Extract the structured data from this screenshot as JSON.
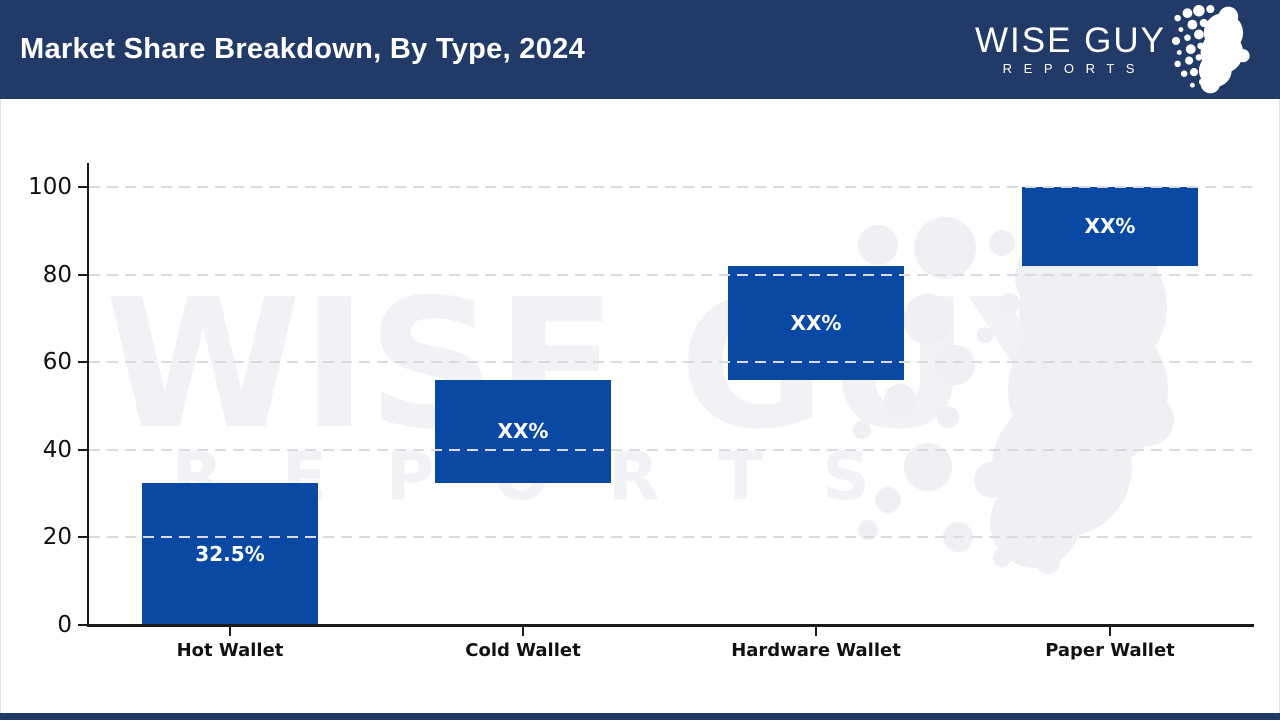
{
  "header": {
    "title": "Market Share Breakdown, By Type, 2024",
    "logo": {
      "line1": "WISE GUY",
      "line2": "R E P O R T S",
      "icon": "dotted-head-profile"
    }
  },
  "watermark": {
    "line1": "WISE GUY",
    "line2": "R E P O R T S",
    "icon": "dotted-head-profile"
  },
  "chart_data": {
    "type": "bar",
    "subtype": "waterfall",
    "title": "Market Share Breakdown, By Type, 2024",
    "categories": [
      "Hot Wallet",
      "Cold Wallet",
      "Hardware Wallet",
      "Paper Wallet"
    ],
    "segments": [
      {
        "category": "Hot Wallet",
        "start": 0,
        "end": 32.5,
        "value": 32.5,
        "label": "32.5%"
      },
      {
        "category": "Cold Wallet",
        "start": 32.5,
        "end": 56,
        "value": 23.5,
        "label": "XX%"
      },
      {
        "category": "Hardware Wallet",
        "start": 56,
        "end": 82,
        "value": 26,
        "label": "XX%"
      },
      {
        "category": "Paper Wallet",
        "start": 82,
        "end": 100,
        "value": 18,
        "label": "XX%"
      }
    ],
    "xlabel": "",
    "ylabel": "",
    "ylim": [
      0,
      105
    ],
    "yticks": [
      0,
      20,
      40,
      60,
      80,
      100
    ],
    "grid": "horizontal dashed gridlines drawn over bars",
    "legend_position": "none",
    "bar_color": "#0a49a3",
    "bar_label_color": "#ffffff"
  },
  "colors": {
    "header_bg": "#223a67",
    "footer_bg": "#223a67",
    "bar": "#0a49a3",
    "grid": "#d9dbde",
    "axis": "#1b1b1b",
    "watermark": "#f1f2f5"
  }
}
